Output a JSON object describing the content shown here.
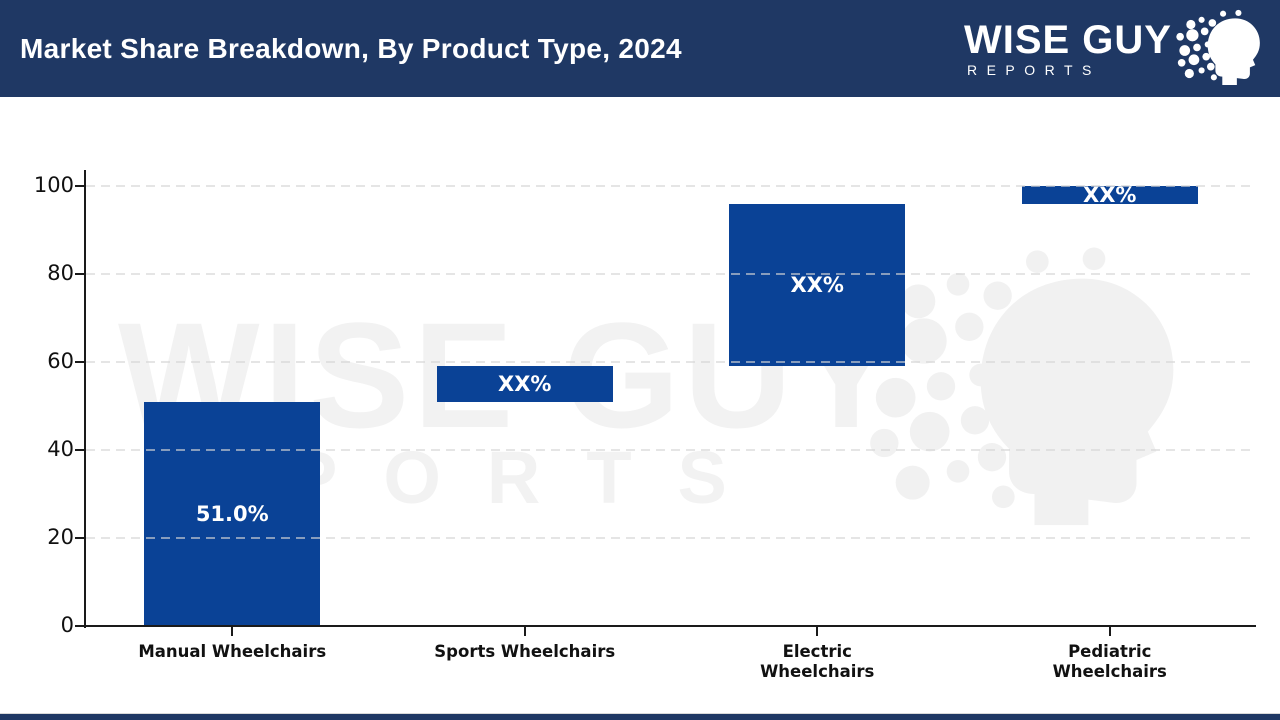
{
  "header": {
    "title": "Market Share Breakdown, By Product Type, 2024",
    "logo": {
      "line1": "WISE GUY",
      "line2": "REPORTS"
    }
  },
  "watermark": {
    "line1": "WISE GUY",
    "line2": "PORTS"
  },
  "colors": {
    "header_bg": "#1f3864",
    "footer_bg": "#1f3864",
    "bar": "#0a4296",
    "grid": "#e0e0e0",
    "axis": "#1a1a1a",
    "watermark": "#f2f2f2"
  },
  "chart_data": {
    "type": "bar",
    "variant": "waterfall",
    "title": "Market Share Breakdown, By Product Type, 2024",
    "categories": [
      "Manual Wheelchairs",
      "Sports Wheelchairs",
      "Electric Wheelchairs",
      "Pediatric Wheelchairs"
    ],
    "values": [
      51,
      8,
      37,
      4
    ],
    "bars": [
      {
        "category": "Manual Wheelchairs",
        "lines": [
          "Manual Wheelchairs"
        ],
        "start": 0,
        "end": 51,
        "label": "51.0%"
      },
      {
        "category": "Sports Wheelchairs",
        "lines": [
          "Sports Wheelchairs"
        ],
        "start": 51,
        "end": 59,
        "label": "XX%"
      },
      {
        "category": "Electric Wheelchairs",
        "lines": [
          "Electric",
          "Wheelchairs"
        ],
        "start": 59,
        "end": 96,
        "label": "XX%"
      },
      {
        "category": "Pediatric Wheelchairs",
        "lines": [
          "Pediatric",
          "Wheelchairs"
        ],
        "start": 96,
        "end": 100,
        "label": "XX%"
      }
    ],
    "xlabel": "",
    "ylabel": "",
    "yticks": [
      0,
      20,
      40,
      60,
      80,
      100
    ],
    "ylim": [
      0,
      105
    ],
    "grid": "horizontal-dashed",
    "legend": "none",
    "bar_color": "#0a4296",
    "bar_label_color": "#ffffff"
  }
}
